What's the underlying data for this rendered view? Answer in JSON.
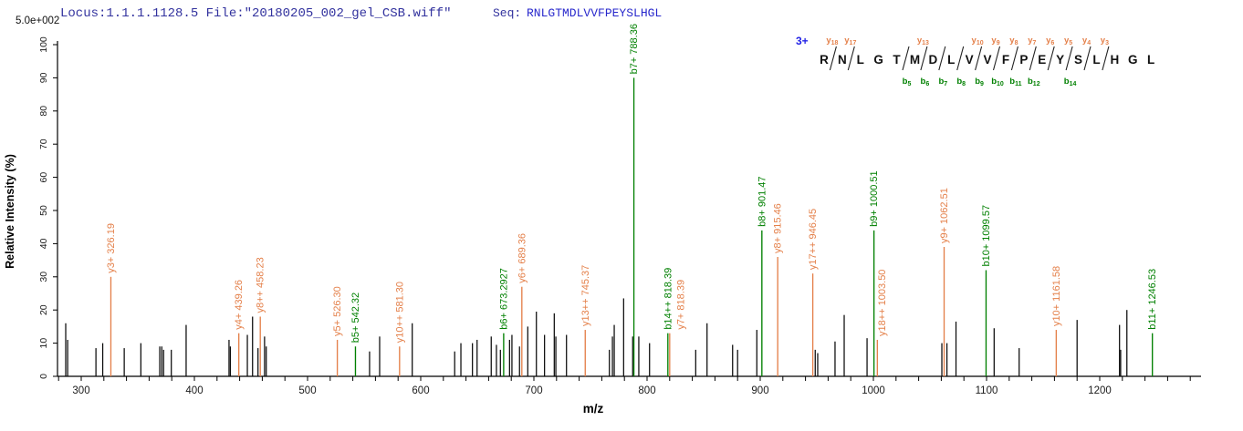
{
  "header": {
    "locus_file": "Locus:1.1.1.1128.5 File:\"20180205_002_gel_CSB.wiff\"",
    "seq_label": "Seq:",
    "sequence": "RNLGTMDLVVFPEYSLHGL"
  },
  "peptide_map": {
    "charge": "3+",
    "residues": [
      "R",
      "N",
      "L",
      "G",
      "T",
      "M",
      "D",
      "L",
      "V",
      "V",
      "F",
      "P",
      "E",
      "Y",
      "S",
      "L",
      "H",
      "G",
      "L"
    ],
    "cleavages": [
      {
        "after": 1,
        "y": "y18"
      },
      {
        "after": 2,
        "y": "y17"
      },
      {
        "after": 5,
        "b": "b5"
      },
      {
        "after": 6,
        "y": "y13",
        "b": "b6"
      },
      {
        "after": 7,
        "b": "b7"
      },
      {
        "after": 8,
        "b": "b8"
      },
      {
        "after": 9,
        "y": "y10",
        "b": "b9"
      },
      {
        "after": 10,
        "y": "y9",
        "b": "b10"
      },
      {
        "after": 11,
        "y": "y8",
        "b": "b11"
      },
      {
        "after": 12,
        "y": "y7",
        "b": "b12"
      },
      {
        "after": 13,
        "y": "y6"
      },
      {
        "after": 14,
        "y": "y5",
        "b": "b14"
      },
      {
        "after": 15,
        "y": "y4"
      },
      {
        "after": 16,
        "y": "y3"
      }
    ]
  },
  "chart_data": {
    "type": "stick-spectrum",
    "title": "MS/MS fragment ion spectrum",
    "xlabel": "m/z",
    "ylabel": "Relative  Intensity (%)",
    "y_max_label": "5.0e+002",
    "x_range": [
      280,
      1290
    ],
    "y_range": [
      0,
      100
    ],
    "x_major_tick_step": 100,
    "x_minor_tick_step": 20,
    "x_labeled_ticks": [
      300,
      400,
      500,
      600,
      700,
      800,
      900,
      1000,
      1100,
      1200
    ],
    "y_tick_step": 10,
    "grid": false,
    "legend": "none",
    "colors": {
      "y_ion": "#E4804A",
      "b_ion": "#008000",
      "unassigned": "#0a0a0a"
    },
    "labeled_peaks": [
      {
        "ion": "y3+",
        "mz": 326.19,
        "mz_label": "326.19",
        "intensity": 30,
        "type": "y"
      },
      {
        "ion": "y4+",
        "mz": 439.26,
        "mz_label": "439.26",
        "intensity": 13,
        "type": "y"
      },
      {
        "ion": "y8++",
        "mz": 458.23,
        "mz_label": "458.23",
        "intensity": 18,
        "type": "y"
      },
      {
        "ion": "y5+",
        "mz": 526.3,
        "mz_label": "526.30",
        "intensity": 11,
        "type": "y"
      },
      {
        "ion": "b5+",
        "mz": 542.32,
        "mz_label": "542.32",
        "intensity": 9,
        "type": "b"
      },
      {
        "ion": "y10++",
        "mz": 581.3,
        "mz_label": "581.30",
        "intensity": 9,
        "type": "y"
      },
      {
        "ion": "b6+",
        "mz": 673.2927,
        "mz_label": "673.2927",
        "intensity": 13,
        "type": "b"
      },
      {
        "ion": "y6+",
        "mz": 689.36,
        "mz_label": "689.36",
        "intensity": 27,
        "type": "y"
      },
      {
        "ion": "y13++",
        "mz": 745.37,
        "mz_label": "745.37",
        "intensity": 14,
        "type": "y"
      },
      {
        "ion": "b7+",
        "mz": 788.36,
        "mz_label": "788.36",
        "intensity": 90,
        "type": "b"
      },
      {
        "ion": "b14++",
        "mz": 818.39,
        "mz_label": "818.39",
        "intensity": 13,
        "type": "b"
      },
      {
        "ion": "y7+",
        "mz": 818.39,
        "mz_label": "818.39",
        "intensity": 13,
        "type": "y",
        "label_dx": 12,
        "peak_dx": 2
      },
      {
        "ion": "b8+",
        "mz": 901.47,
        "mz_label": "901.47",
        "intensity": 44,
        "type": "b"
      },
      {
        "ion": "y8+",
        "mz": 915.46,
        "mz_label": "915.46",
        "intensity": 36,
        "type": "y"
      },
      {
        "ion": "y17++",
        "mz": 946.45,
        "mz_label": "946.45",
        "intensity": 31,
        "type": "y"
      },
      {
        "ion": "b9+",
        "mz": 1000.51,
        "mz_label": "1000.51",
        "intensity": 44,
        "type": "b"
      },
      {
        "ion": "y18++",
        "mz": 1003.5,
        "mz_label": "1003.50",
        "intensity": 11,
        "type": "y",
        "label_dx": 5
      },
      {
        "ion": "y9+",
        "mz": 1062.51,
        "mz_label": "1062.51",
        "intensity": 39,
        "type": "y"
      },
      {
        "ion": "b10+",
        "mz": 1099.57,
        "mz_label": "1099.57",
        "intensity": 32,
        "type": "b"
      },
      {
        "ion": "y10+",
        "mz": 1161.58,
        "mz_label": "1161.58",
        "intensity": 14,
        "type": "y"
      },
      {
        "ion": "b11+",
        "mz": 1246.53,
        "mz_label": "1246.53",
        "intensity": 13,
        "type": "b"
      }
    ],
    "unlabeled_peaks": [
      [
        286.3,
        16
      ],
      [
        288.0,
        11
      ],
      [
        313.0,
        8.5
      ],
      [
        319.0,
        10
      ],
      [
        338.0,
        8.5
      ],
      [
        352.7,
        10
      ],
      [
        369.4,
        9
      ],
      [
        371.2,
        9
      ],
      [
        372.8,
        8
      ],
      [
        379.6,
        8
      ],
      [
        392.7,
        15.5
      ],
      [
        430.6,
        11
      ],
      [
        431.8,
        9
      ],
      [
        446.8,
        12.5
      ],
      [
        451.4,
        18
      ],
      [
        456.2,
        8.5
      ],
      [
        462.0,
        12
      ],
      [
        463.5,
        9
      ],
      [
        554.8,
        7.5
      ],
      [
        563.7,
        12
      ],
      [
        592.5,
        16
      ],
      [
        630.0,
        7.5
      ],
      [
        635.5,
        10
      ],
      [
        645.7,
        10
      ],
      [
        649.8,
        11
      ],
      [
        662.3,
        12
      ],
      [
        666.9,
        9.5
      ],
      [
        670.4,
        8
      ],
      [
        678.5,
        11
      ],
      [
        680.6,
        12.5
      ],
      [
        687.3,
        9
      ],
      [
        694.6,
        15
      ],
      [
        702.2,
        19.5
      ],
      [
        709.4,
        12.5
      ],
      [
        718.0,
        19
      ],
      [
        719.4,
        12
      ],
      [
        728.8,
        12.5
      ],
      [
        766.7,
        8
      ],
      [
        769.4,
        12
      ],
      [
        771.0,
        15.5
      ],
      [
        779.3,
        23.5
      ],
      [
        787.3,
        12
      ],
      [
        792.7,
        12
      ],
      [
        802.2,
        10
      ],
      [
        843.0,
        8
      ],
      [
        853.0,
        16
      ],
      [
        875.6,
        9.5
      ],
      [
        880.0,
        8
      ],
      [
        897.0,
        14
      ],
      [
        948.6,
        8
      ],
      [
        950.8,
        7
      ],
      [
        966.1,
        10.5
      ],
      [
        974.2,
        18.5
      ],
      [
        994.4,
        11.5
      ],
      [
        1060.5,
        10
      ],
      [
        1065.0,
        10
      ],
      [
        1073.0,
        16.5
      ],
      [
        1106.7,
        14.5
      ],
      [
        1128.8,
        8.5
      ],
      [
        1180.0,
        17
      ],
      [
        1217.5,
        15.5
      ],
      [
        1218.5,
        8
      ],
      [
        1224.0,
        20
      ]
    ]
  }
}
